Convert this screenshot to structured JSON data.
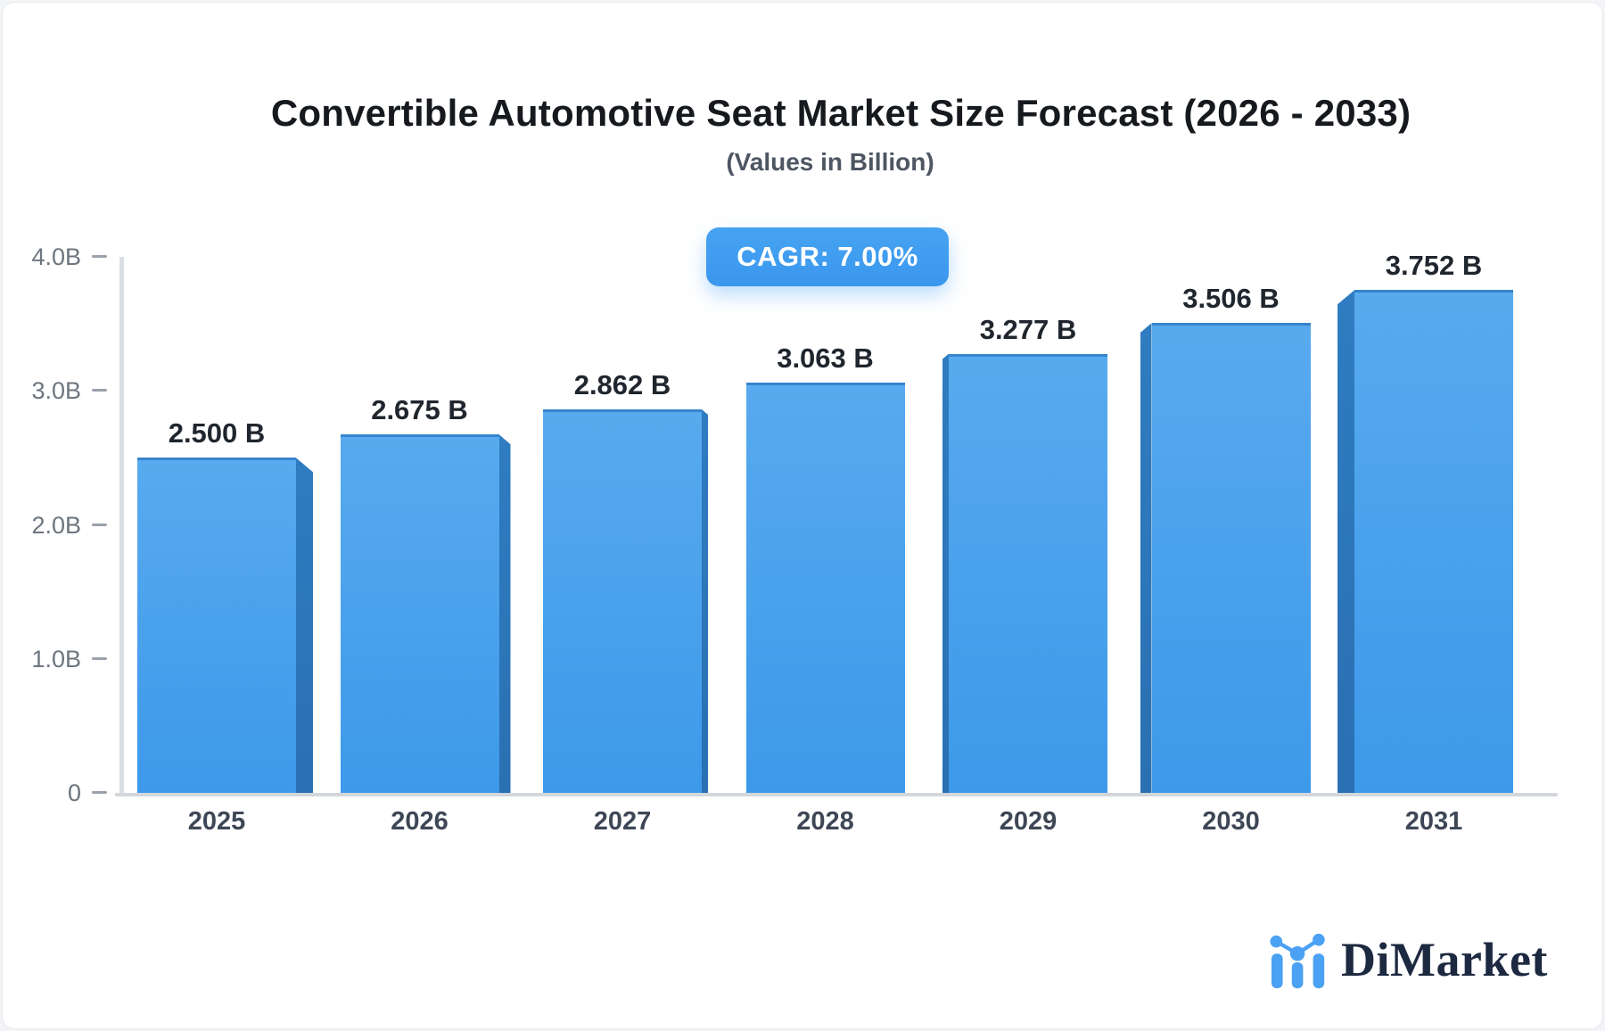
{
  "page": {
    "background": "#f2f4f7",
    "card_background": "#ffffff"
  },
  "header": {
    "title": "Convertible Automotive Seat Market Size Forecast (2026 - 2033)",
    "subtitle": "(Values in Billion)"
  },
  "badge": {
    "label": "CAGR: 7.00%",
    "background": "#3F9DF0",
    "text_color": "#ffffff"
  },
  "chart_data": {
    "type": "bar",
    "title": "Convertible Automotive Seat Market Size Forecast (2026 - 2033)",
    "subtitle": "(Values in Billion)",
    "categories": [
      "2025",
      "2026",
      "2027",
      "2028",
      "2029",
      "2030",
      "2031"
    ],
    "values": [
      2.5,
      2.675,
      2.862,
      3.063,
      3.277,
      3.506,
      3.752
    ],
    "value_labels": [
      "2.500 B",
      "2.675 B",
      "2.862 B",
      "3.063 B",
      "3.277 B",
      "3.506 B",
      "3.752 B"
    ],
    "xlabel": "",
    "ylabel": "",
    "ylim": [
      0,
      4
    ],
    "yticks": [
      {
        "value": 0,
        "label": "0"
      },
      {
        "value": 1,
        "label": "1.0B"
      },
      {
        "value": 2,
        "label": "2.0B"
      },
      {
        "value": 3,
        "label": "3.0B"
      },
      {
        "value": 4,
        "label": "4.0B"
      }
    ],
    "grid": false,
    "legend": false,
    "bar_style": {
      "face_top": "#58AAEE",
      "face_bottom": "#3D99EA",
      "top_edge": "#3784CD",
      "side_top": "#2F7CC1",
      "side_bottom": "#2A70B2"
    },
    "value_label_color": "#20262E",
    "axis_line_color": "#DADDE2",
    "baseline_color": "#D3D7DC",
    "tick_dash_color": "#9AA1AC",
    "ytick_label_color": "#6D757F",
    "xtick_label_color": "#3E4756"
  },
  "logo": {
    "text": "DiMarket",
    "icon": "mini-bar-chart-icon",
    "text_color": "#1D2940",
    "icon_color": "#4BA1F3"
  }
}
